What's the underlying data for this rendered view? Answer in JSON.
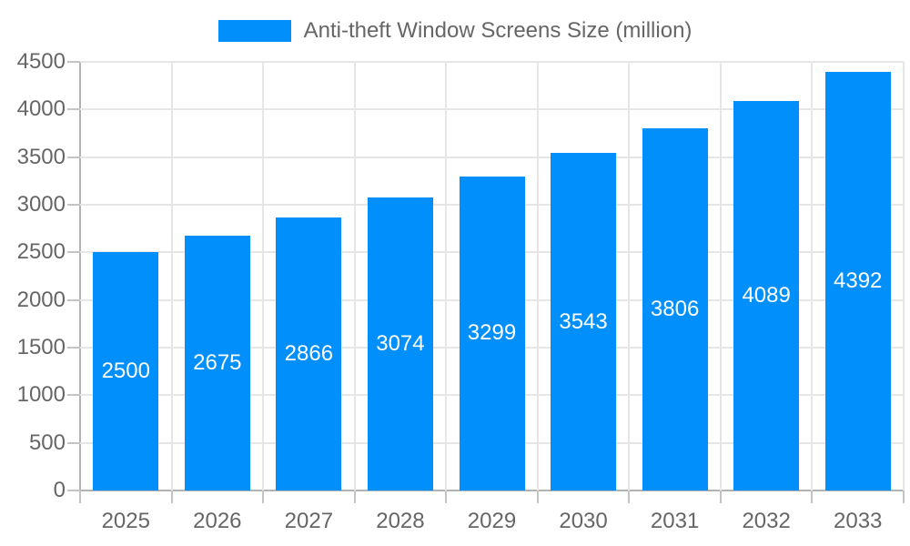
{
  "legend": {
    "label": "Anti-theft Window Screens Size (million)"
  },
  "chart_data": {
    "type": "bar",
    "title": "Anti-theft Window Screens Size (million)",
    "categories": [
      "2025",
      "2026",
      "2027",
      "2028",
      "2029",
      "2030",
      "2031",
      "2032",
      "2033"
    ],
    "values": [
      2500,
      2675,
      2866,
      3074,
      3299,
      3543,
      3806,
      4089,
      4392
    ],
    "series_name": "Anti-theft Window Screens Size (million)",
    "xlabel": "",
    "ylabel": "",
    "ylim": [
      0,
      4500
    ],
    "ytick_step": 500,
    "grid": true,
    "legend_position": "top",
    "value_labels": "centered-white-inside-bars",
    "colors": {
      "bar": "#008ffb",
      "axis_label": "#666666",
      "gridline": "#e6e6e6",
      "axis_line": "#b3b3b3",
      "value_label": "#ffffff"
    }
  }
}
